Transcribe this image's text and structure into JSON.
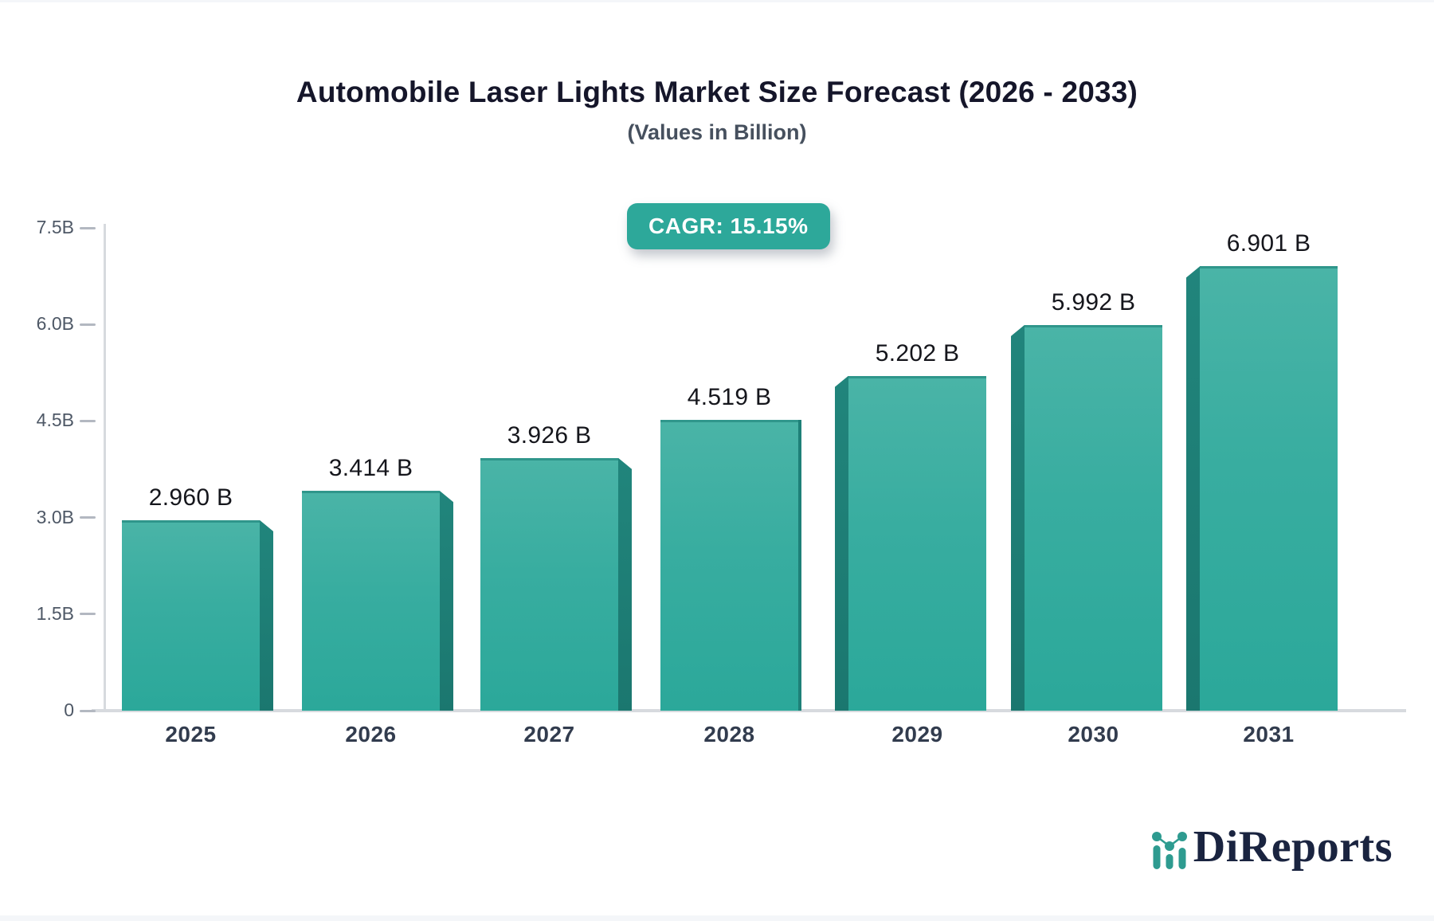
{
  "header": {
    "title": "Automobile Laser Lights Market Size Forecast (2026 - 2033)",
    "subtitle": "(Values in Billion)"
  },
  "badge": {
    "label": "CAGR: 15.15%"
  },
  "chart_data": {
    "type": "bar",
    "title": "Automobile Laser Lights Market Size Forecast (2026 - 2033)",
    "subtitle": "(Values in Billion)",
    "categories": [
      "2025",
      "2026",
      "2027",
      "2028",
      "2029",
      "2030",
      "2031"
    ],
    "values": [
      2.96,
      3.414,
      3.926,
      4.519,
      5.202,
      5.992,
      6.901
    ],
    "value_labels": [
      "2.960 B",
      "3.414 B",
      "3.926 B",
      "4.519 B",
      "5.202 B",
      "5.992 B",
      "6.901 B"
    ],
    "unit": "Billion",
    "cagr": "15.15%",
    "ylim": [
      0,
      7.5
    ],
    "yticks": [
      {
        "label": "0",
        "value": 0
      },
      {
        "label": "1.5B",
        "value": 1.5
      },
      {
        "label": "3.0B",
        "value": 3.0
      },
      {
        "label": "4.5B",
        "value": 4.5
      },
      {
        "label": "6.0B",
        "value": 6.0
      },
      {
        "label": "7.5B",
        "value": 7.5
      }
    ],
    "grid": "off",
    "legend": "none",
    "bar_color_top": "#4ab4a7",
    "bar_color_bottom": "#2ba89a",
    "bar_bevel_color": "#1e7e76",
    "axis_color": "#d7dade"
  },
  "logo": {
    "text": "DiReports",
    "icon": "bar-line-chart-icon",
    "text_color": "#1a2440",
    "icon_color": "#2e9b90"
  }
}
